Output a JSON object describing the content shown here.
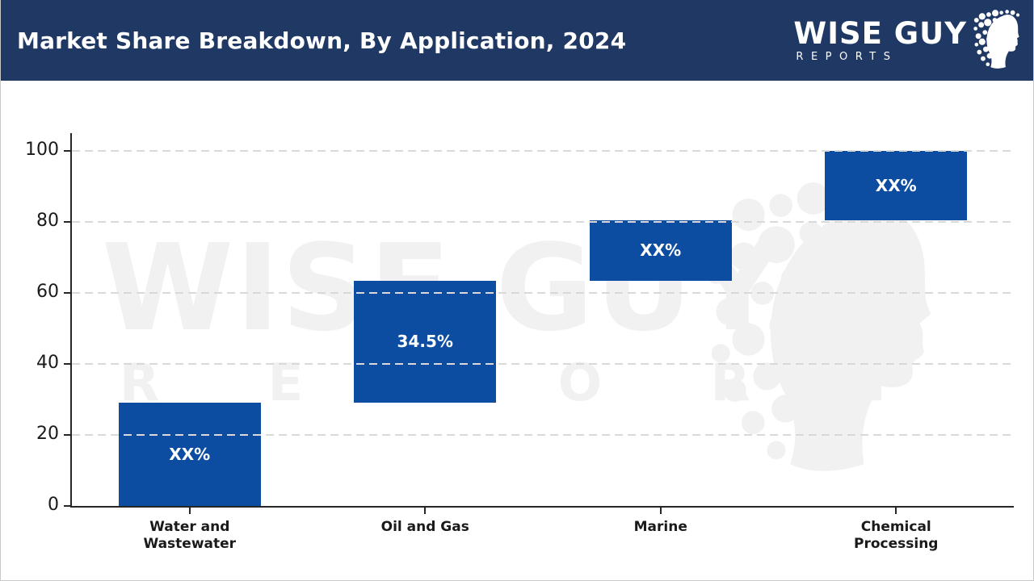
{
  "header": {
    "title": "Market Share Breakdown, By Application, 2024",
    "bg_color": "#1F3864",
    "logo": {
      "wordmark": "WISE GUY",
      "subtext": "REPORTS"
    }
  },
  "watermark": {
    "wordmark": "WISE GUY",
    "subtext": "R E P O R T S"
  },
  "chart_data": {
    "type": "bar",
    "subtype": "floating-waterfall",
    "title": "Market Share Breakdown, By Application, 2024",
    "categories": [
      "Water and Wastewater",
      "Oil and Gas",
      "Marine",
      "Chemical Processing"
    ],
    "category_label_lines": [
      [
        "Water and",
        "Wastewater"
      ],
      [
        "Oil and Gas"
      ],
      [
        "Marine"
      ],
      [
        "Chemical",
        "Processing"
      ]
    ],
    "segments": [
      {
        "category": "Water and Wastewater",
        "start": 0,
        "end": 29,
        "label": "XX%"
      },
      {
        "category": "Oil and Gas",
        "start": 29,
        "end": 63.5,
        "label": "34.5%"
      },
      {
        "category": "Marine",
        "start": 63.5,
        "end": 80.5,
        "label": "XX%"
      },
      {
        "category": "Chemical Processing",
        "start": 80.5,
        "end": 100,
        "label": "XX%"
      }
    ],
    "ylim": [
      0,
      100
    ],
    "yticks": [
      0,
      20,
      40,
      60,
      80,
      100
    ],
    "xlabel": "",
    "ylabel": "",
    "legend": "none",
    "grid": {
      "orientation": "horizontal",
      "style": "dashed",
      "color": "#D9D9D9",
      "drawn_over_bars": true
    },
    "bar_color": "#0C4DA2",
    "bar_label_color": "#FFFFFF",
    "axis_color": "#262626",
    "tick_label_color": "#1A1A1A"
  }
}
